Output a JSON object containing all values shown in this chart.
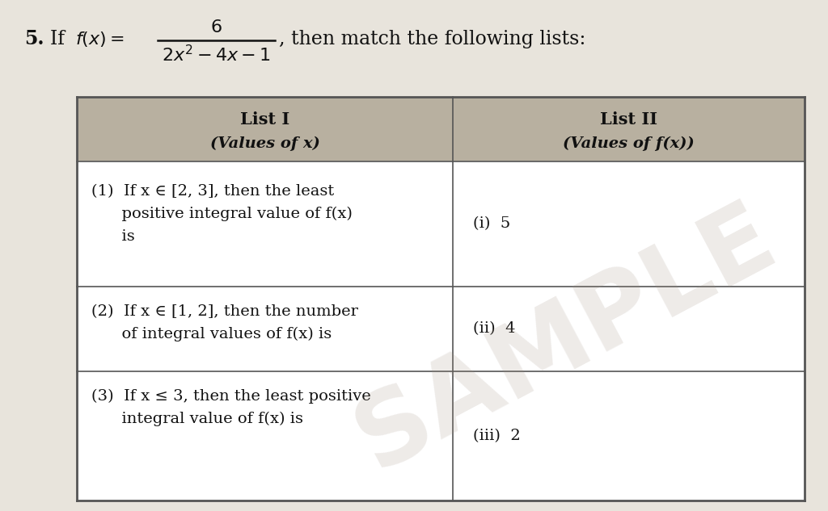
{
  "bg_color": "#e8e4dc",
  "table_bg": "#ffffff",
  "table_header_bg": "#b8b0a0",
  "table_border_color": "#555555",
  "col1_header_line1": "List I",
  "col1_header_line2": "(Values of x)",
  "col2_header_line1": "List II",
  "col2_header_line2": "(Values of f(x))",
  "text_color": "#111111",
  "header_text_color": "#111111",
  "font_size_title": 17,
  "font_size_formula": 16,
  "font_size_header": 15,
  "font_size_table": 14,
  "row1_left_lines": [
    "(1)  If x ∈ [2, 3], then the least",
    "      positive integral value of f(x)",
    "      is"
  ],
  "row1_right": "(i)  5",
  "row2_left_lines": [
    "(2)  If x ∈ [1, 2], then the number",
    "      of integral values of f(x) is"
  ],
  "row2_right": "(ii)  4",
  "row3_left_lines": [
    "(3)  If x ≤ 3, then the least positive",
    "      integral value of f(x) is"
  ],
  "row3_right": "(iii)  2",
  "watermark_text": "SAMPLE",
  "watermark_color": "#a09080",
  "watermark_alpha": 0.18
}
